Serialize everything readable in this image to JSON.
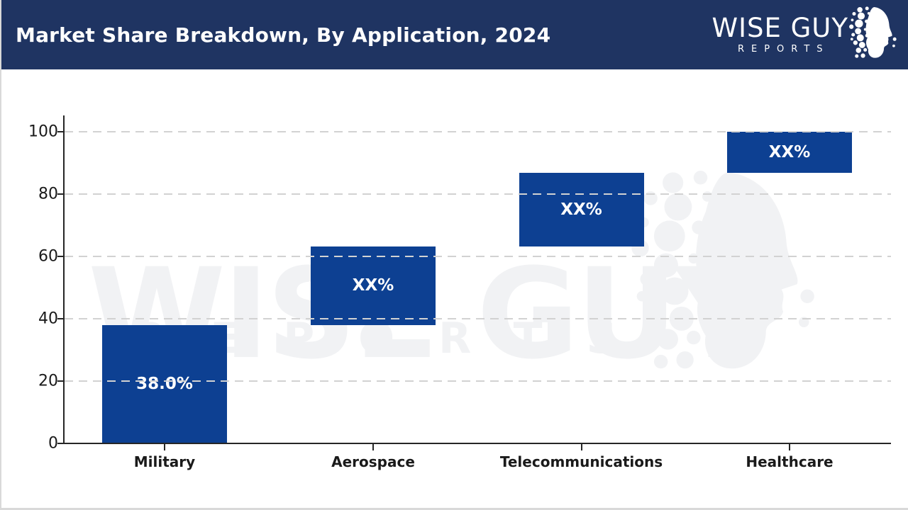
{
  "header": {
    "title": "Market Share Breakdown, By Application, 2024",
    "logo": {
      "line1": "WISE GUY",
      "line2": "REPORTS"
    }
  },
  "watermark": {
    "line1": "WISE GUY",
    "line2": "REPORTS"
  },
  "chart_data": {
    "type": "bar",
    "subtype": "waterfall",
    "title": "Market Share Breakdown, By Application, 2024",
    "categories": [
      "Military",
      "Aerospace",
      "Telecommunications",
      "Healthcare"
    ],
    "segments": [
      {
        "category": "Military",
        "start": 0,
        "end": 38,
        "label": "38.0%"
      },
      {
        "category": "Aerospace",
        "start": 38,
        "end": 63.2,
        "label": "XX%"
      },
      {
        "category": "Telecommunications",
        "start": 63.2,
        "end": 86.8,
        "label": "XX%"
      },
      {
        "category": "Healthcare",
        "start": 86.8,
        "end": 100,
        "label": "XX%"
      }
    ],
    "yticks": [
      0,
      20,
      40,
      60,
      80,
      100
    ],
    "ylim": [
      0,
      100
    ],
    "grid": "horizontal-dashed",
    "legend": "none",
    "bar_color": "#0d4092",
    "bar_label_color": "#ffffff"
  },
  "colors": {
    "header_bg": "#1f3462",
    "bar": "#0d4092",
    "axis": "#262626",
    "gridline": "#d2d2d2",
    "watermark": "#f1f2f4",
    "page_border": "#d9d9d9"
  }
}
